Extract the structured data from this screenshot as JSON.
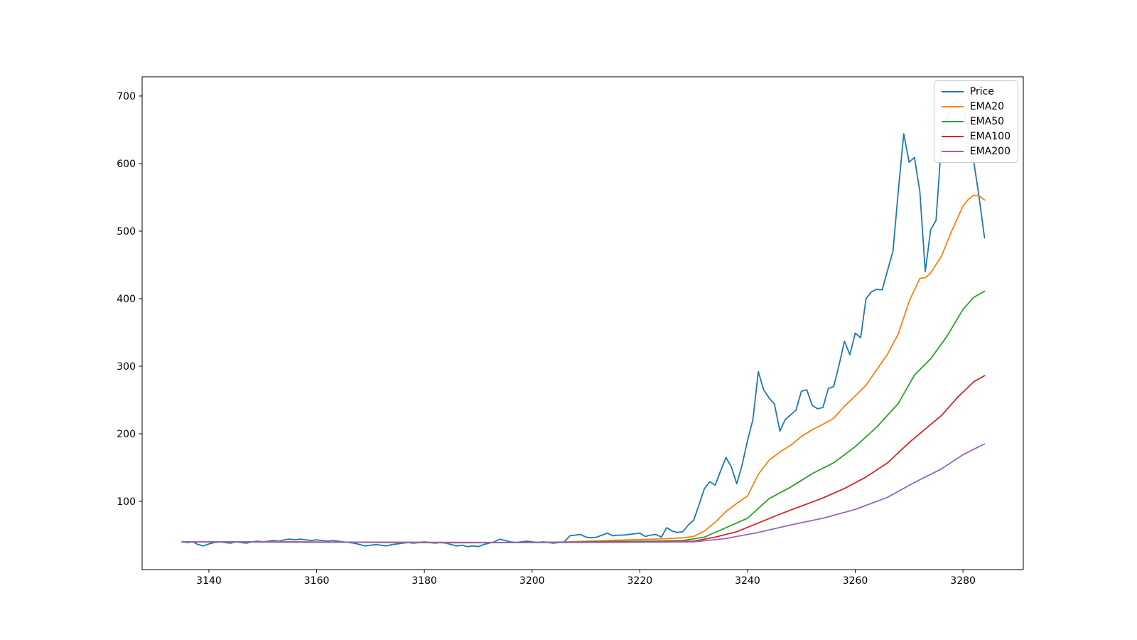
{
  "chart_data": {
    "type": "line",
    "title": "",
    "xlabel": "",
    "ylabel": "",
    "grid": false,
    "xlim": [
      3127.6,
      3291.2
    ],
    "ylim": [
      -1.05,
      728.4
    ],
    "x_ticks": [
      3140,
      3160,
      3180,
      3200,
      3220,
      3240,
      3260,
      3280
    ],
    "y_ticks": [
      100,
      200,
      300,
      400,
      500,
      600,
      700
    ],
    "legend": {
      "position": "upper right",
      "labels": [
        "Price",
        "EMA20",
        "EMA50",
        "EMA100",
        "EMA200"
      ]
    },
    "series": [
      {
        "name": "Price",
        "color": "#1f77b4",
        "x_start": 3135,
        "x_step": 1,
        "values": [
          40,
          39,
          40,
          36,
          34,
          37,
          39,
          40,
          39,
          38,
          40,
          39,
          38,
          40,
          41,
          40,
          41,
          42,
          41,
          43,
          44,
          43,
          44,
          43,
          42,
          43,
          42,
          41,
          42,
          41,
          40,
          39,
          38,
          36,
          34,
          35,
          36,
          35,
          34,
          36,
          37,
          38,
          39,
          38,
          39,
          40,
          39,
          38,
          39,
          38,
          36,
          34,
          35,
          33,
          34,
          33,
          36,
          38,
          40,
          44,
          42,
          40,
          39,
          40,
          41,
          40,
          39,
          40,
          39,
          38,
          39,
          40,
          49,
          50,
          51,
          47,
          46,
          47,
          50,
          53,
          49,
          50,
          50,
          51,
          52,
          53,
          48,
          50,
          51,
          47,
          61,
          56,
          54,
          55,
          65,
          72,
          95,
          119,
          129,
          124,
          145,
          165,
          151,
          126,
          154,
          190,
          221,
          292,
          265,
          253,
          244,
          204,
          221,
          228,
          235,
          263,
          265,
          242,
          237,
          239,
          267,
          270,
          302,
          337,
          317,
          349,
          342,
          400,
          410,
          414,
          413,
          442,
          470,
          560,
          644,
          602,
          609,
          558,
          440,
          502,
          516,
          631,
          665,
          688,
          695,
          683,
          652,
          603,
          550,
          490
        ]
      },
      {
        "name": "EMA20",
        "color": "#ff7f0e",
        "points": [
          [
            3135,
            40
          ],
          [
            3145,
            39.8
          ],
          [
            3155,
            40.2
          ],
          [
            3165,
            39.6
          ],
          [
            3175,
            39
          ],
          [
            3185,
            38.6
          ],
          [
            3195,
            38.8
          ],
          [
            3205,
            39.5
          ],
          [
            3212,
            41.5
          ],
          [
            3218,
            43
          ],
          [
            3224,
            44.5
          ],
          [
            3228,
            46
          ],
          [
            3230,
            48
          ],
          [
            3232,
            56
          ],
          [
            3234,
            69
          ],
          [
            3236,
            85
          ],
          [
            3238,
            97
          ],
          [
            3240,
            108
          ],
          [
            3242,
            140
          ],
          [
            3244,
            161
          ],
          [
            3246,
            173
          ],
          [
            3248,
            183
          ],
          [
            3250,
            196
          ],
          [
            3252,
            206
          ],
          [
            3254,
            214
          ],
          [
            3256,
            223
          ],
          [
            3258,
            241
          ],
          [
            3260,
            256
          ],
          [
            3262,
            272
          ],
          [
            3264,
            295
          ],
          [
            3266,
            318
          ],
          [
            3268,
            348
          ],
          [
            3270,
            396
          ],
          [
            3272,
            430
          ],
          [
            3273,
            431
          ],
          [
            3274,
            438
          ],
          [
            3276,
            463
          ],
          [
            3278,
            502
          ],
          [
            3280,
            537
          ],
          [
            3281,
            547
          ],
          [
            3282,
            553
          ],
          [
            3283,
            552
          ],
          [
            3284,
            546
          ]
        ]
      },
      {
        "name": "EMA50",
        "color": "#2ca02c",
        "points": [
          [
            3135,
            40
          ],
          [
            3150,
            39.8
          ],
          [
            3165,
            39.4
          ],
          [
            3180,
            39
          ],
          [
            3195,
            39
          ],
          [
            3207,
            39.6
          ],
          [
            3215,
            40.5
          ],
          [
            3222,
            41.2
          ],
          [
            3228,
            42
          ],
          [
            3232,
            47
          ],
          [
            3236,
            61
          ],
          [
            3240,
            75
          ],
          [
            3244,
            104
          ],
          [
            3248,
            121
          ],
          [
            3252,
            141
          ],
          [
            3256,
            157
          ],
          [
            3260,
            181
          ],
          [
            3264,
            210
          ],
          [
            3268,
            245
          ],
          [
            3271,
            287
          ],
          [
            3274,
            311
          ],
          [
            3277,
            344
          ],
          [
            3280,
            384
          ],
          [
            3282,
            402
          ],
          [
            3284,
            411
          ]
        ]
      },
      {
        "name": "EMA100",
        "color": "#d62728",
        "points": [
          [
            3135,
            40
          ],
          [
            3155,
            39.7
          ],
          [
            3175,
            39.3
          ],
          [
            3195,
            39
          ],
          [
            3210,
            39.4
          ],
          [
            3222,
            40
          ],
          [
            3230,
            41
          ],
          [
            3234,
            47
          ],
          [
            3238,
            55
          ],
          [
            3242,
            68
          ],
          [
            3246,
            81
          ],
          [
            3250,
            93
          ],
          [
            3254,
            105
          ],
          [
            3258,
            119
          ],
          [
            3262,
            136
          ],
          [
            3266,
            157
          ],
          [
            3270,
            187
          ],
          [
            3273,
            207
          ],
          [
            3276,
            227
          ],
          [
            3279,
            254
          ],
          [
            3282,
            277
          ],
          [
            3284,
            286
          ]
        ]
      },
      {
        "name": "EMA200",
        "color": "#9467bd",
        "points": [
          [
            3135,
            40
          ],
          [
            3160,
            39.6
          ],
          [
            3185,
            39.2
          ],
          [
            3205,
            39
          ],
          [
            3218,
            39.3
          ],
          [
            3230,
            40
          ],
          [
            3236,
            45
          ],
          [
            3242,
            54
          ],
          [
            3248,
            65
          ],
          [
            3254,
            75
          ],
          [
            3260,
            88
          ],
          [
            3266,
            106
          ],
          [
            3271,
            128
          ],
          [
            3276,
            148
          ],
          [
            3280,
            169
          ],
          [
            3284,
            185
          ]
        ]
      }
    ],
    "axis": {
      "spine_color": "#000000",
      "tick_color": "#000000",
      "label_color": "#000000",
      "tick_font_size": 14
    }
  }
}
